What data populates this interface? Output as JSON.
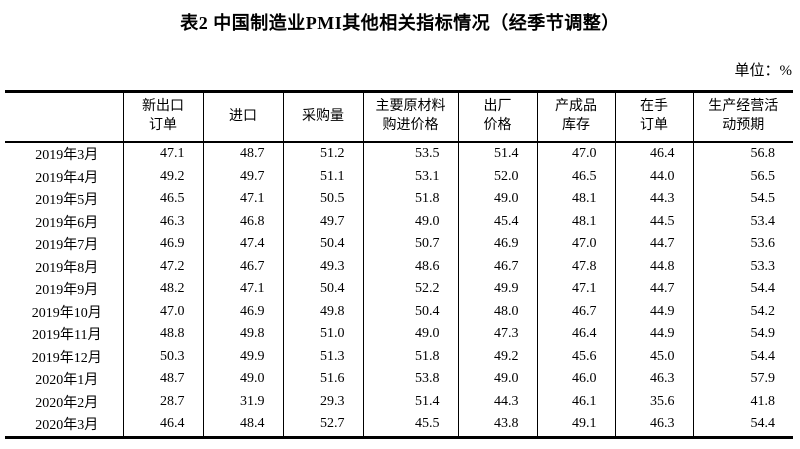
{
  "title": "表2 中国制造业PMI其他相关指标情况（经季节调整）",
  "unit_label": "单位：%",
  "colors": {
    "text": "#000000",
    "border": "#000000",
    "background": "#ffffff"
  },
  "table": {
    "row_header_label": "",
    "columns": [
      "新出口\n订单",
      "进口",
      "采购量",
      "主要原材料\n购进价格",
      "出厂\n价格",
      "产成品\n库存",
      "在手\n订单",
      "生产经营活\n动预期"
    ],
    "rows": [
      {
        "label": "2019年3月",
        "values": [
          "47.1",
          "48.7",
          "51.2",
          "53.5",
          "51.4",
          "47.0",
          "46.4",
          "56.8"
        ]
      },
      {
        "label": "2019年4月",
        "values": [
          "49.2",
          "49.7",
          "51.1",
          "53.1",
          "52.0",
          "46.5",
          "44.0",
          "56.5"
        ]
      },
      {
        "label": "2019年5月",
        "values": [
          "46.5",
          "47.1",
          "50.5",
          "51.8",
          "49.0",
          "48.1",
          "44.3",
          "54.5"
        ]
      },
      {
        "label": "2019年6月",
        "values": [
          "46.3",
          "46.8",
          "49.7",
          "49.0",
          "45.4",
          "48.1",
          "44.5",
          "53.4"
        ]
      },
      {
        "label": "2019年7月",
        "values": [
          "46.9",
          "47.4",
          "50.4",
          "50.7",
          "46.9",
          "47.0",
          "44.7",
          "53.6"
        ]
      },
      {
        "label": "2019年8月",
        "values": [
          "47.2",
          "46.7",
          "49.3",
          "48.6",
          "46.7",
          "47.8",
          "44.8",
          "53.3"
        ]
      },
      {
        "label": "2019年9月",
        "values": [
          "48.2",
          "47.1",
          "50.4",
          "52.2",
          "49.9",
          "47.1",
          "44.7",
          "54.4"
        ]
      },
      {
        "label": "2019年10月",
        "values": [
          "47.0",
          "46.9",
          "49.8",
          "50.4",
          "48.0",
          "46.7",
          "44.9",
          "54.2"
        ]
      },
      {
        "label": "2019年11月",
        "values": [
          "48.8",
          "49.8",
          "51.0",
          "49.0",
          "47.3",
          "46.4",
          "44.9",
          "54.9"
        ]
      },
      {
        "label": "2019年12月",
        "values": [
          "50.3",
          "49.9",
          "51.3",
          "51.8",
          "49.2",
          "45.6",
          "45.0",
          "54.4"
        ]
      },
      {
        "label": "2020年1月",
        "values": [
          "48.7",
          "49.0",
          "51.6",
          "53.8",
          "49.0",
          "46.0",
          "46.3",
          "57.9"
        ]
      },
      {
        "label": "2020年2月",
        "values": [
          "28.7",
          "31.9",
          "29.3",
          "51.4",
          "44.3",
          "46.1",
          "35.6",
          "41.8"
        ]
      },
      {
        "label": "2020年3月",
        "values": [
          "46.4",
          "48.4",
          "52.7",
          "45.5",
          "43.8",
          "49.1",
          "46.3",
          "54.4"
        ]
      }
    ]
  }
}
